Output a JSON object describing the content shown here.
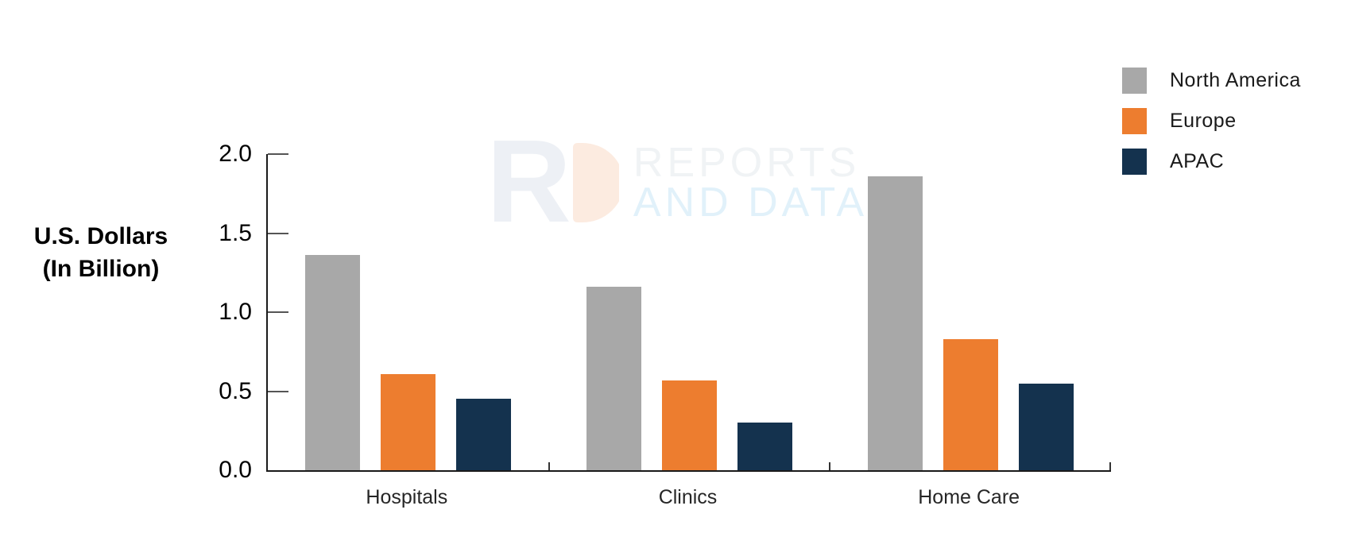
{
  "chart_data": {
    "type": "bar",
    "title": "",
    "categories": [
      "Hospitals",
      "Clinics",
      "Home Care"
    ],
    "series": [
      {
        "name": "North America",
        "color": "#a8a8a8",
        "values": [
          1.36,
          1.16,
          1.86
        ]
      },
      {
        "name": "Europe",
        "color": "#ed7d2f",
        "values": [
          0.61,
          0.57,
          0.83
        ]
      },
      {
        "name": "APAC",
        "color": "#14324e",
        "values": [
          0.45,
          0.3,
          0.55
        ]
      }
    ],
    "ylabel": "U.S. Dollars (In Billion)",
    "ylabel_lines": [
      "U.S. Dollars",
      "(In Billion)"
    ],
    "xlabel": "",
    "yticks": [
      0.0,
      0.5,
      1.0,
      1.5,
      2.0
    ],
    "ylim": [
      0,
      2.0
    ],
    "grid": false,
    "legend_position": "top-right",
    "axis_color": "#1a1a1a"
  },
  "watermark": {
    "logo_text": "R",
    "line1": "REPORTS",
    "line2": "AND DATA",
    "logo_r_color": "#edf0f5",
    "logo_d_color": "#fcebe0",
    "line1_color": "#f0f3f5",
    "line2_color": "#e1f1fa"
  }
}
